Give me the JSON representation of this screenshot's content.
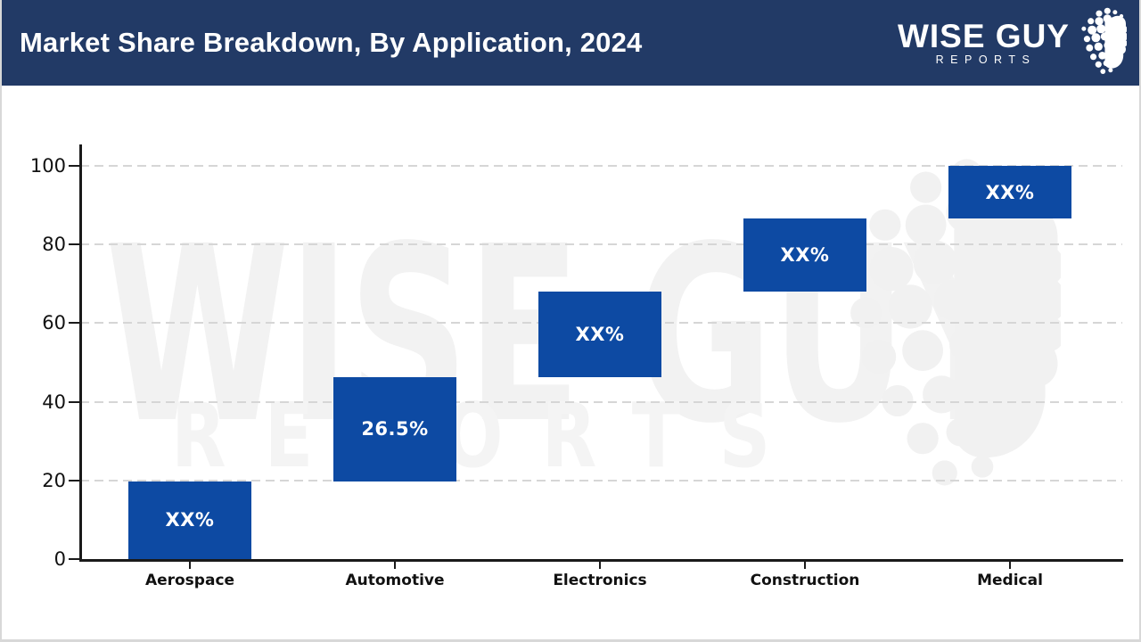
{
  "header": {
    "title": "Market Share Breakdown, By Application, 2024",
    "logo": {
      "wordmark": "WISE GUY",
      "subtext": "REPORTS"
    }
  },
  "watermark": {
    "line1": "WISE GUY",
    "line2": "REPORTS"
  },
  "colors": {
    "header_bg": "#223a66",
    "bar_fill": "#0d4aa3",
    "bar_label": "#ffffff",
    "grid": "#d6d6d6",
    "axis": "#1a1a1a",
    "tick_text": "#111111",
    "watermark": "#f2f2f2",
    "page_border": "#d8d8d8"
  },
  "chart_data": {
    "type": "bar",
    "variant": "floating-waterfall",
    "title": "Market Share Breakdown, By Application, 2024",
    "categories": [
      "Aerospace",
      "Automotive",
      "Electronics",
      "Construction",
      "Medical"
    ],
    "series": [
      {
        "name": "Market Share",
        "segments": [
          {
            "category": "Aerospace",
            "start": 0,
            "end": 19.8,
            "label": "XX%"
          },
          {
            "category": "Automotive",
            "start": 19.8,
            "end": 46.3,
            "label": "26.5%"
          },
          {
            "category": "Electronics",
            "start": 46.3,
            "end": 68.0,
            "label": "XX%"
          },
          {
            "category": "Construction",
            "start": 68.0,
            "end": 86.6,
            "label": "XX%"
          },
          {
            "category": "Medical",
            "start": 86.6,
            "end": 100,
            "label": "XX%"
          }
        ]
      }
    ],
    "xlabel": "",
    "ylabel": "",
    "ylim": [
      0,
      100
    ],
    "yticks": [
      0,
      20,
      40,
      60,
      80,
      100
    ],
    "grid": "horizontal-dashed",
    "legend": "none"
  }
}
